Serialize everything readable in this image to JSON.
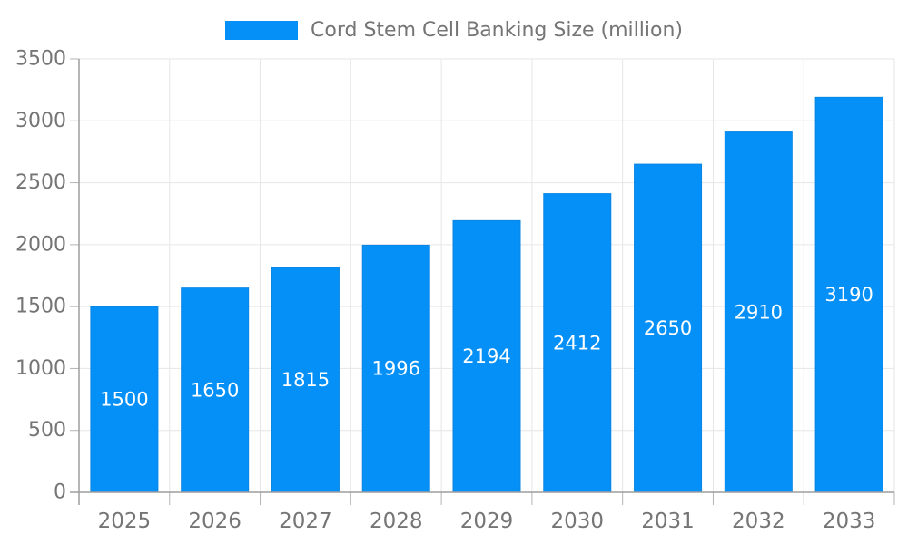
{
  "legend": {
    "label": "Cord Stem Cell Banking Size (million)"
  },
  "colors": {
    "bar": "#0590f8",
    "bar_border": "#0b85e2",
    "grid": "#e6e6e6",
    "axis": "#9e9e9e",
    "tick": "#b3b3b3",
    "tick_text": "#757575",
    "value_text": "#ffffff",
    "background": "#ffffff"
  },
  "chart_data": {
    "type": "bar",
    "title": "Cord Stem Cell Banking Size (million)",
    "categories": [
      "2025",
      "2026",
      "2027",
      "2028",
      "2029",
      "2030",
      "2031",
      "2032",
      "2033"
    ],
    "values": [
      1500,
      1650,
      1815,
      1996,
      2194,
      2412,
      2650,
      2910,
      3190
    ],
    "value_labels": [
      "1500",
      "1650",
      "1815",
      "1996",
      "2194",
      "2412",
      "2650",
      "2910",
      "3190"
    ],
    "xlabel": "",
    "ylabel": "",
    "ylim": [
      0,
      3500
    ],
    "ytick_step": 500,
    "ytick_labels": [
      "0",
      "500",
      "1000",
      "1500",
      "2000",
      "2500",
      "3000",
      "3500"
    ],
    "grid": true,
    "legend_position": "top",
    "bar_labels_inside": true
  }
}
